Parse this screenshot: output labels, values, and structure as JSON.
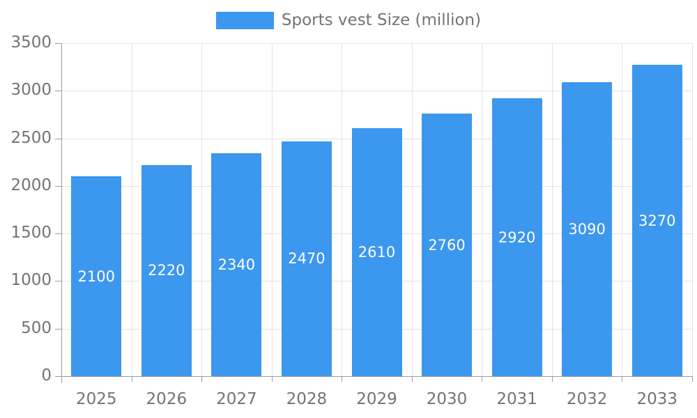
{
  "chart_data": {
    "type": "bar",
    "title": "",
    "legend": "Sports vest Size (million)",
    "legend_position": "top-center",
    "categories": [
      "2025",
      "2026",
      "2027",
      "2028",
      "2029",
      "2030",
      "2031",
      "2032",
      "2033"
    ],
    "values": [
      2100,
      2220,
      2340,
      2470,
      2610,
      2760,
      2920,
      3090,
      3270
    ],
    "xlabel": "",
    "ylabel": "",
    "ylim": [
      0,
      3500
    ],
    "yticks": [
      0,
      500,
      1000,
      1500,
      2000,
      2500,
      3000,
      3500
    ],
    "grid": true,
    "bar_label_position": "inside-center",
    "colors": {
      "bar": "#3c97ee",
      "bar_label": "#ffffff",
      "axis_line": "#9b9b9b",
      "gridline": "#e2e2e2",
      "text": "#737373",
      "background": "#ffffff"
    }
  }
}
